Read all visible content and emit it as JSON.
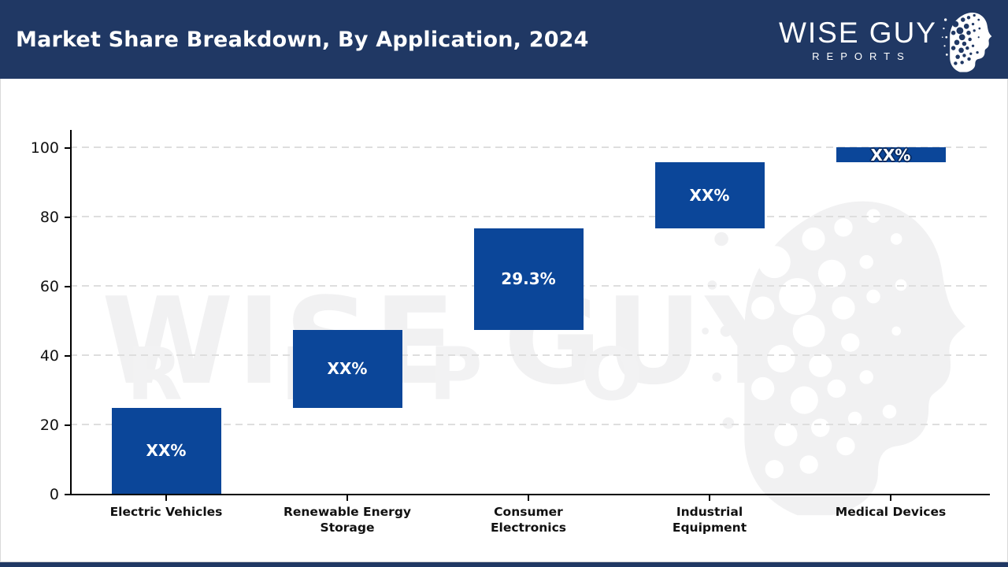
{
  "header": {
    "title": "Market Share Breakdown, By Application, 2024",
    "logo": {
      "line1": "WISE GUY",
      "line2": "REPORTS"
    }
  },
  "watermark": {
    "line1": "WISE GUY",
    "line2": "REPORTS"
  },
  "chart_data": {
    "type": "bar",
    "variant": "waterfall",
    "title": "Market Share Breakdown, By Application, 2024",
    "categories": [
      "Electric Vehicles",
      "Renewable Energy Storage",
      "Consumer Electronics",
      "Industrial Equipment",
      "Medical Devices"
    ],
    "segments": [
      {
        "category": "Electric Vehicles",
        "label_lines": [
          "Electric Vehicles"
        ],
        "start": 0,
        "end": 24.8,
        "value_label": "XX%"
      },
      {
        "category": "Renewable Energy Storage",
        "label_lines": [
          "Renewable Energy",
          "Storage"
        ],
        "start": 24.8,
        "end": 47.3,
        "value_label": "XX%"
      },
      {
        "category": "Consumer Electronics",
        "label_lines": [
          "Consumer",
          "Electronics"
        ],
        "start": 47.3,
        "end": 76.6,
        "value_label": "29.3%"
      },
      {
        "category": "Industrial Equipment",
        "label_lines": [
          "Industrial",
          "Equipment"
        ],
        "start": 76.6,
        "end": 95.6,
        "value_label": "XX%"
      },
      {
        "category": "Medical Devices",
        "label_lines": [
          "Medical Devices"
        ],
        "start": 95.6,
        "end": 100.0,
        "value_label": "XX%"
      }
    ],
    "xlabel": "",
    "ylabel": "",
    "yticks": [
      0,
      20,
      40,
      60,
      80,
      100
    ],
    "ylim": [
      0,
      105
    ],
    "grid": {
      "horizontal": true,
      "style": "dashed"
    },
    "legend": "none",
    "colors": {
      "bar": "#0b4699",
      "value_label": "#ffffff",
      "grid": "#dedede",
      "axis": "#000000",
      "header_bg": "#203864",
      "watermark": "#f1f1f2"
    }
  }
}
